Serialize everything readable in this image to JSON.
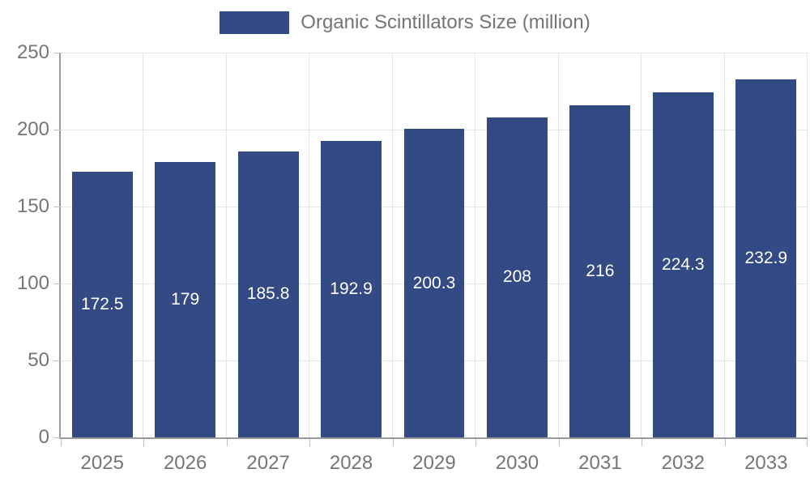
{
  "chart_data": {
    "type": "bar",
    "title": "",
    "categories": [
      "2025",
      "2026",
      "2027",
      "2028",
      "2029",
      "2030",
      "2031",
      "2032",
      "2033"
    ],
    "series": [
      {
        "name": "Organic Scintillators Size (million)",
        "values": [
          172.5,
          179,
          185.8,
          192.9,
          200.3,
          208,
          216,
          224.3,
          232.9
        ],
        "value_labels": [
          "172.5",
          "179",
          "185.8",
          "192.9",
          "200.3",
          "208",
          "216",
          "224.3",
          "232.9"
        ]
      }
    ],
    "xlabel": "",
    "ylabel": "",
    "ylim": [
      0,
      250
    ],
    "yticks": [
      0,
      50,
      100,
      150,
      200,
      250
    ],
    "grid": true,
    "legend_position": "top-center",
    "colors": {
      "bar": "#344a85",
      "value_label": "#ffffff",
      "axis_text": "#757575",
      "legend_text": "#757575",
      "axis_line": "#999999",
      "gridline": "#e5e5e5",
      "tick": "#c0c0c0"
    }
  }
}
